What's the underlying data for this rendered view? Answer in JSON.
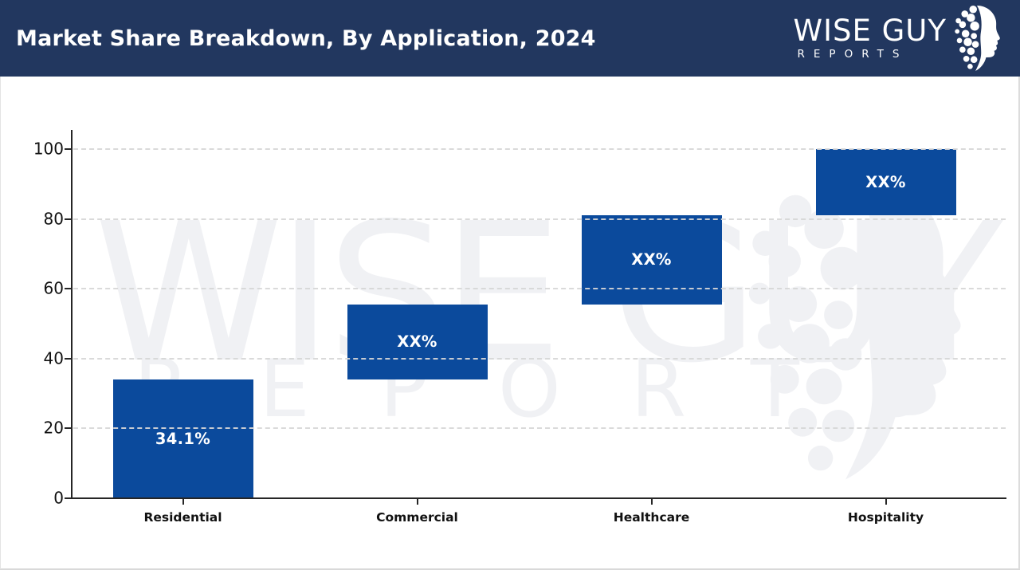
{
  "header": {
    "title": "Market Share Breakdown, By Application, 2024",
    "logo": {
      "line1": "WISE GUY",
      "line2": "REPORTS"
    }
  },
  "watermark": {
    "line1": "WISE GUY",
    "line2": "REPORTS"
  },
  "chart_data": {
    "type": "bar",
    "subtype": "waterfall",
    "title": "Market Share Breakdown, By Application, 2024",
    "categories": [
      "Residential",
      "Commercial",
      "Healthcare",
      "Hospitality"
    ],
    "series": [
      {
        "name": "Market Share (%)",
        "segments": [
          {
            "category": "Residential",
            "start": 0,
            "end": 34.1,
            "label": "34.1%"
          },
          {
            "category": "Commercial",
            "start": 34.1,
            "end": 55.5,
            "label": "XX%"
          },
          {
            "category": "Healthcare",
            "start": 55.5,
            "end": 81.1,
            "label": "XX%"
          },
          {
            "category": "Hospitality",
            "start": 81.1,
            "end": 100,
            "label": "XX%"
          }
        ]
      }
    ],
    "xlabel": "",
    "ylabel": "",
    "ylim": [
      0,
      105
    ],
    "yticks": [
      0,
      20,
      40,
      60,
      80,
      100
    ],
    "grid": true,
    "grid_style": "dashed",
    "legend": null,
    "bar_color": "#0b4a9c",
    "bar_label_color": "#ffffff"
  },
  "colors": {
    "header_bg": "#22375f",
    "bar": "#0b4a9c",
    "axis": "#262626",
    "grid": "#d7d7d7",
    "watermark": "#f0f1f4",
    "text": "#111111"
  }
}
